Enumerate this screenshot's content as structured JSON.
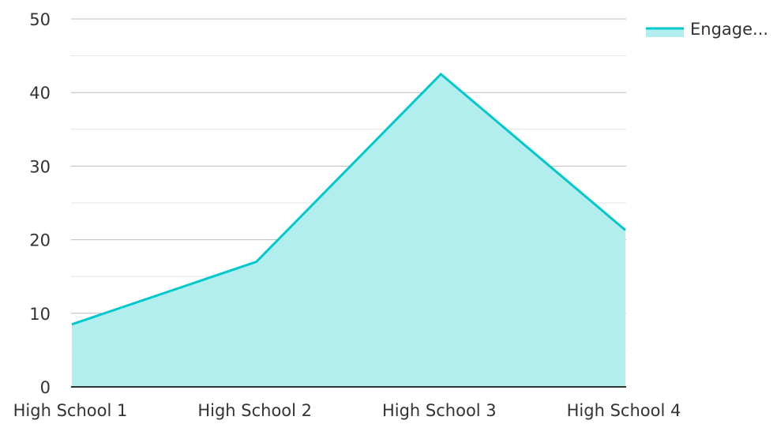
{
  "chart_data": {
    "type": "area",
    "title": "",
    "xlabel": "",
    "ylabel": "",
    "categories": [
      "High School 1",
      "High School 2",
      "High School 3",
      "High School 4"
    ],
    "series": [
      {
        "name": "Engage...",
        "values": [
          8.5,
          17,
          42.5,
          21.3
        ],
        "line_color": "#00c8cc",
        "fill_color": "#b2eeee"
      }
    ],
    "ylim": [
      0,
      50
    ],
    "y_ticks": [
      0,
      10,
      20,
      30,
      40,
      50
    ],
    "minor_grid_step": 5,
    "grid": true,
    "legend_position": "top-right"
  }
}
